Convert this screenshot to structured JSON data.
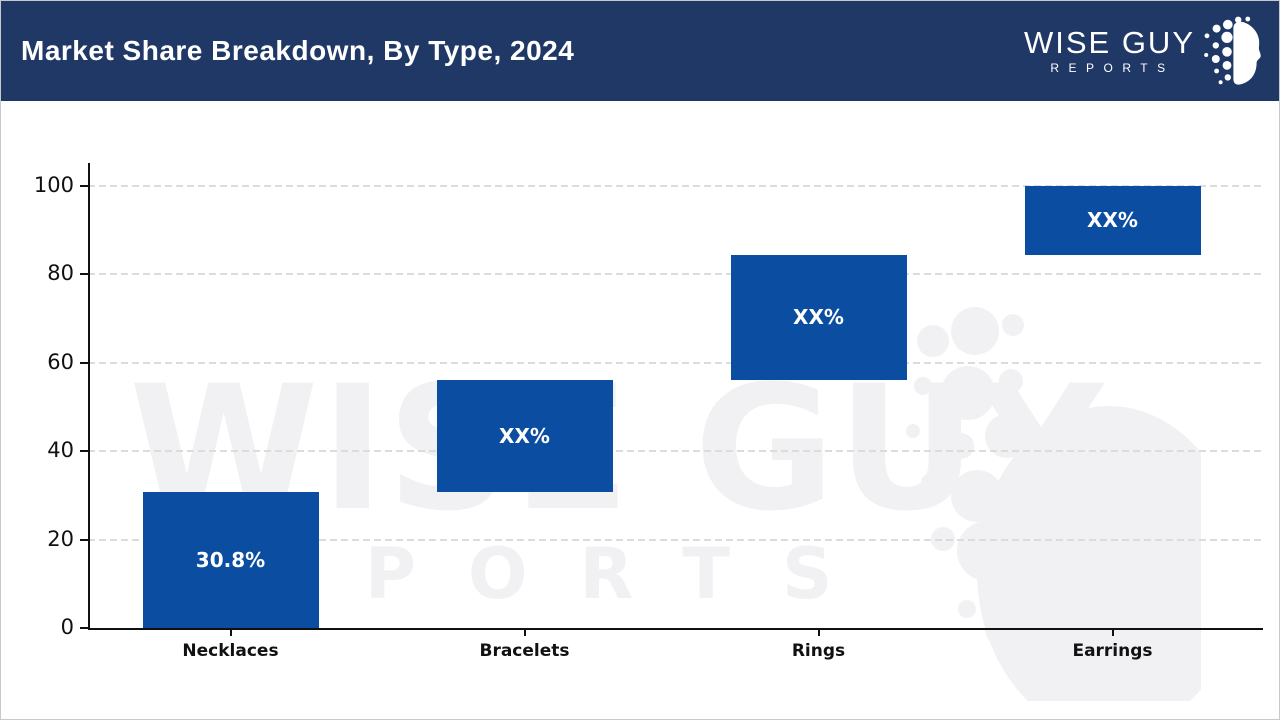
{
  "header": {
    "title": "Market Share Breakdown, By Type, 2024",
    "background_color": "#1f3866",
    "logo": {
      "line1": "WISE GUY",
      "line2": "REPORTS"
    }
  },
  "watermark": {
    "line1": "WISE GUY",
    "line2": "REPORTS"
  },
  "chart_data": {
    "type": "bar",
    "subtype": "waterfall",
    "title": "Market Share Breakdown, By Type, 2024",
    "xlabel": "",
    "ylabel": "",
    "categories": [
      "Necklaces",
      "Bracelets",
      "Rings",
      "Earrings"
    ],
    "segments": [
      {
        "category": "Necklaces",
        "start": 0,
        "end": 30.8,
        "label": "30.8%"
      },
      {
        "category": "Bracelets",
        "start": 30.8,
        "end": 56.1,
        "label": "XX%"
      },
      {
        "category": "Rings",
        "start": 56.1,
        "end": 84.5,
        "label": "XX%"
      },
      {
        "category": "Earrings",
        "start": 84.5,
        "end": 100,
        "label": "XX%"
      }
    ],
    "ylim": [
      0,
      100
    ],
    "yticks": [
      0,
      20,
      40,
      60,
      80,
      100
    ],
    "grid": "horizontal-dashed",
    "legend": "none",
    "bar_color": "#0b4da1",
    "bar_label_color": "#ffffff",
    "axis_color": "#111111",
    "gridline_color": "#dcdcdc"
  }
}
